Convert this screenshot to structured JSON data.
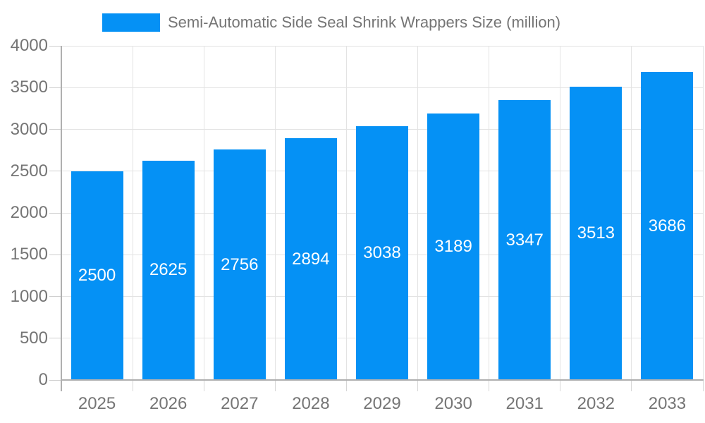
{
  "chart_data": {
    "type": "bar",
    "title": "Semi-Automatic Side Seal Shrink Wrappers Size (million)",
    "legend": {
      "label": "Semi-Automatic Side Seal Shrink Wrappers Size (million)",
      "position": "top"
    },
    "categories": [
      "2025",
      "2026",
      "2027",
      "2028",
      "2029",
      "2030",
      "2031",
      "2032",
      "2033"
    ],
    "values": [
      2500,
      2625,
      2756,
      2894,
      3038,
      3189,
      3347,
      3513,
      3686
    ],
    "xlabel": "",
    "ylabel": "",
    "ylim": [
      0,
      4000
    ],
    "yticks": [
      0,
      500,
      1000,
      1500,
      2000,
      2500,
      3000,
      3500,
      4000
    ],
    "grid": true,
    "bar_label_position": "inside-center",
    "colors": {
      "bar": "#0591F5",
      "bar_label": "#FFFFFF",
      "axis_text": "#757575",
      "legend_text": "#757575",
      "gridline": "#E3E3E3",
      "axis_line": "#B0B0B0",
      "background": "#FFFFFF"
    }
  }
}
